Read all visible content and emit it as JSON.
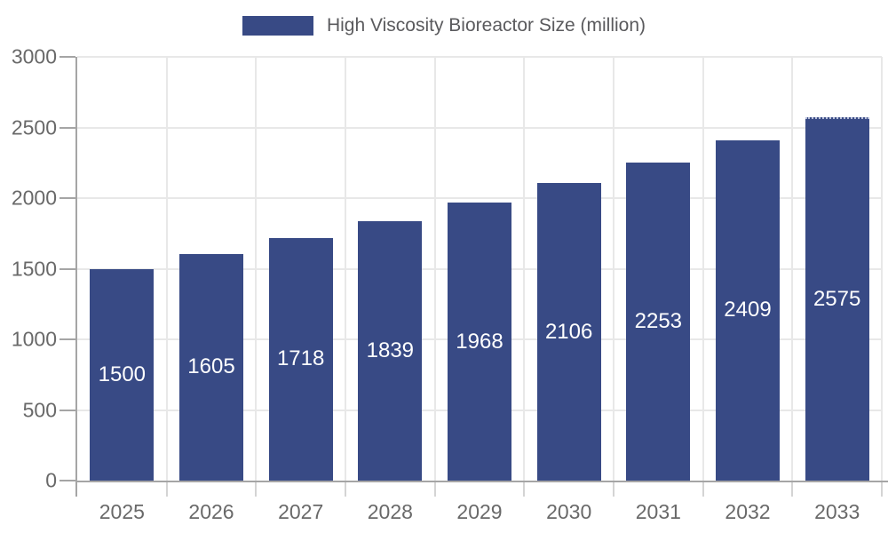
{
  "legend": {
    "label": "High Viscosity Bioreactor Size (million)",
    "swatch_color": "#384A85"
  },
  "chart_data": {
    "type": "bar",
    "title": "High Viscosity Bioreactor Size (million)",
    "categories": [
      "2025",
      "2026",
      "2027",
      "2028",
      "2029",
      "2030",
      "2031",
      "2032",
      "2033"
    ],
    "values": [
      1500,
      1605,
      1718,
      1839,
      1968,
      2106,
      2253,
      2409,
      2575
    ],
    "series_name": "High Viscosity Bioreactor Size (million)",
    "xlabel": "",
    "ylabel": "",
    "ylim": [
      0,
      3000
    ],
    "yticks": [
      0,
      500,
      1000,
      1500,
      2000,
      2500,
      3000
    ],
    "grid": true,
    "legend_position": "top-center",
    "bar_value_labels_inside": true,
    "last_bar_top_style": "dotted",
    "colors": {
      "bar": "#384A85",
      "bar_value_label": "#FFFFFF",
      "axis": "#A5A5A5",
      "grid": "#E8E8E8",
      "x_tick": "#D4D4D4",
      "tick_label": "#696969",
      "legend_text": "#5A5A5D",
      "background": "#FFFFFF"
    }
  }
}
